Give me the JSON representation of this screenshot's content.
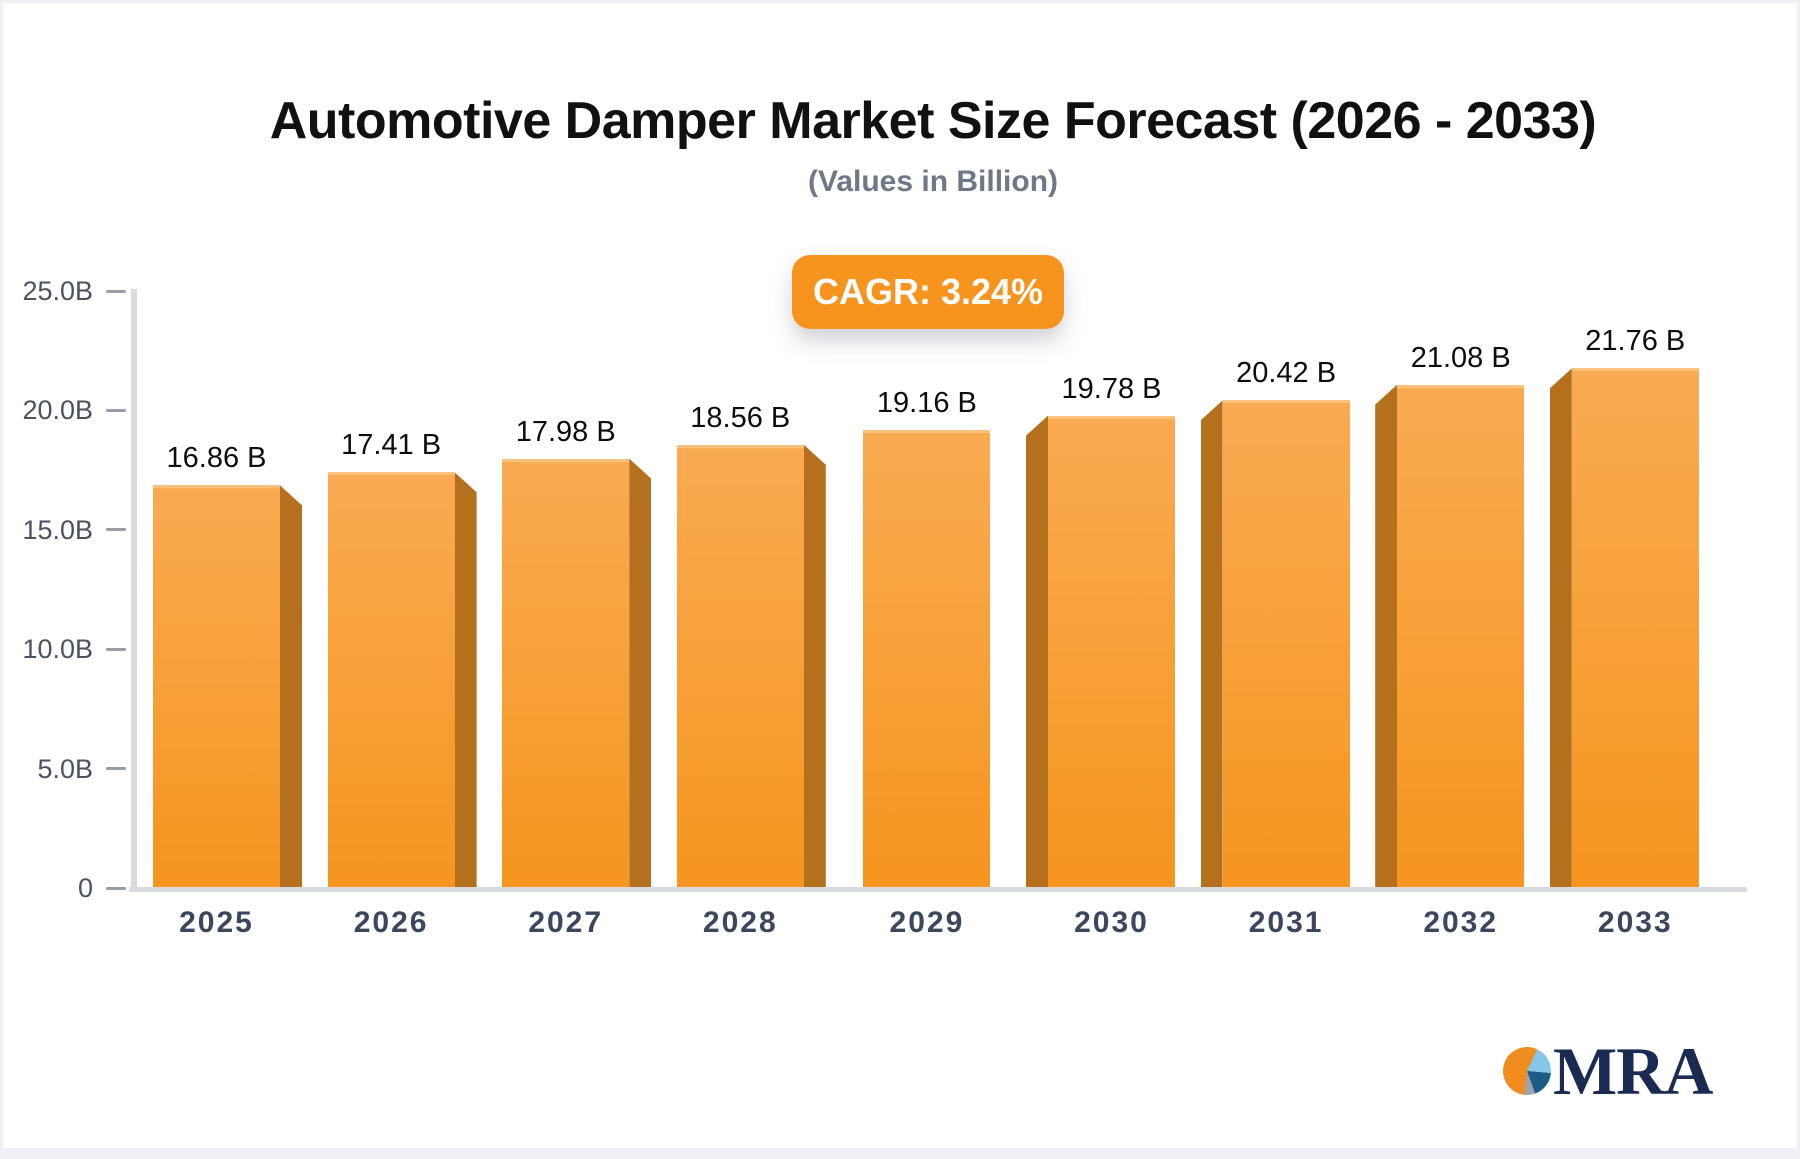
{
  "header": {
    "title": "Automotive Damper Market Size Forecast (2026 - 2033)",
    "subtitle": "(Values in Billion)"
  },
  "badge": {
    "label": "CAGR: 3.24%"
  },
  "chart_data": {
    "type": "bar",
    "title": "Automotive Damper Market Size Forecast (2026 - 2033)",
    "subtitle": "(Values in Billion)",
    "cagr_label": "CAGR: 3.24%",
    "unit": "Billion",
    "categories": [
      "2025",
      "2026",
      "2027",
      "2028",
      "2029",
      "2030",
      "2031",
      "2032",
      "2033"
    ],
    "values": [
      16.86,
      17.41,
      17.98,
      18.56,
      19.16,
      19.78,
      20.42,
      21.08,
      21.76
    ],
    "value_labels": [
      "16.86 B",
      "17.41 B",
      "17.98 B",
      "18.56 B",
      "19.16 B",
      "19.78 B",
      "20.42 B",
      "21.08 B",
      "21.76 B"
    ],
    "ylim": [
      0,
      25
    ],
    "yticks": [
      {
        "value": 0,
        "label": "0"
      },
      {
        "value": 5,
        "label": "5.0B"
      },
      {
        "value": 10,
        "label": "10.0B"
      },
      {
        "value": 15,
        "label": "15.0B"
      },
      {
        "value": 20,
        "label": "20.0B"
      },
      {
        "value": 25,
        "label": "25.0B"
      }
    ],
    "grid": false,
    "legend": null,
    "colors": {
      "bar_top": "#f9ab52",
      "bar_bottom": "#f6951f",
      "bar_side": "#b4701c",
      "badge_bg": "#f7941d",
      "axis_line": "#d8dbe0",
      "tick_dash": "#969da8",
      "tick_label": "#4a5263",
      "category_label": "#3b475c",
      "value_label": "#0d0d0d"
    }
  },
  "logo": {
    "text": "MRA",
    "pie_colors": [
      "#f08b1e",
      "#85c6e9",
      "#1d5c86",
      "#9fa3a9"
    ]
  }
}
